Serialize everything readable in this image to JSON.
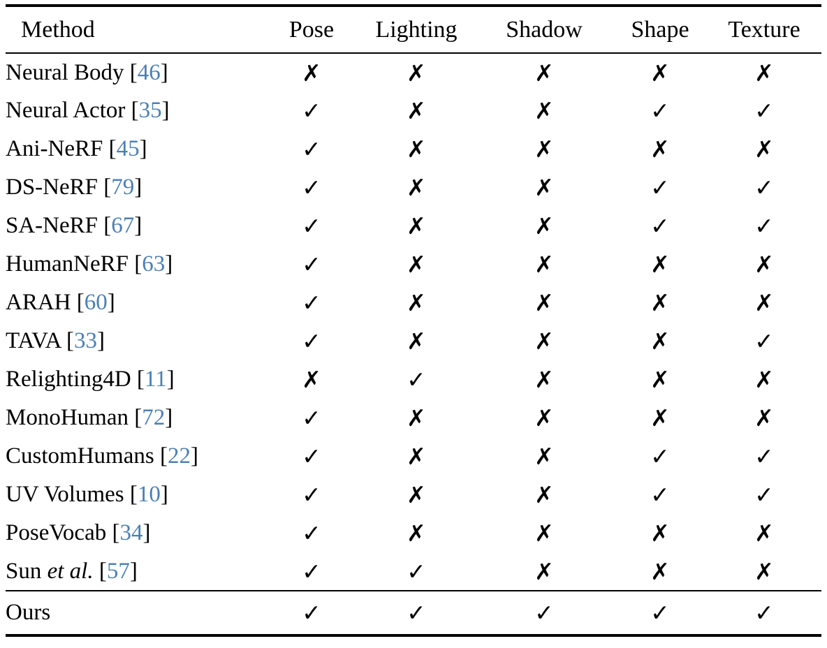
{
  "table": {
    "title": "Method capability comparison table",
    "columns": [
      "Method",
      "Pose",
      "Lighting",
      "Shadow",
      "Shape",
      "Texture"
    ],
    "glyphs": {
      "check": "✓",
      "cross": "✗"
    },
    "colors": {
      "citation": "#4b80b5",
      "ink": "#000000",
      "background": "#ffffff"
    },
    "rows": [
      {
        "method": "Neural Body",
        "cite": "46",
        "marks": [
          "cross",
          "cross",
          "cross",
          "cross",
          "cross"
        ]
      },
      {
        "method": "Neural Actor",
        "cite": "35",
        "marks": [
          "check",
          "cross",
          "cross",
          "check",
          "check"
        ]
      },
      {
        "method": "Ani-NeRF",
        "cite": "45",
        "marks": [
          "check",
          "cross",
          "cross",
          "cross",
          "cross"
        ]
      },
      {
        "method": "DS-NeRF",
        "cite": "79",
        "marks": [
          "check",
          "cross",
          "cross",
          "check",
          "check"
        ]
      },
      {
        "method": "SA-NeRF",
        "cite": "67",
        "marks": [
          "check",
          "cross",
          "cross",
          "check",
          "check"
        ]
      },
      {
        "method": "HumanNeRF",
        "cite": "63",
        "marks": [
          "check",
          "cross",
          "cross",
          "cross",
          "cross"
        ]
      },
      {
        "method": "ARAH",
        "cite": "60",
        "marks": [
          "check",
          "cross",
          "cross",
          "cross",
          "cross"
        ]
      },
      {
        "method": "TAVA",
        "cite": "33",
        "marks": [
          "check",
          "cross",
          "cross",
          "cross",
          "check"
        ]
      },
      {
        "method": "Relighting4D",
        "cite": "11",
        "marks": [
          "cross",
          "check",
          "cross",
          "cross",
          "cross"
        ]
      },
      {
        "method": "MonoHuman",
        "cite": "72",
        "marks": [
          "check",
          "cross",
          "cross",
          "cross",
          "cross"
        ]
      },
      {
        "method": "CustomHumans",
        "cite": "22",
        "marks": [
          "check",
          "cross",
          "cross",
          "check",
          "check"
        ]
      },
      {
        "method": "UV Volumes",
        "cite": "10",
        "marks": [
          "check",
          "cross",
          "cross",
          "check",
          "check"
        ]
      },
      {
        "method": "PoseVocab",
        "cite": "34",
        "marks": [
          "check",
          "cross",
          "cross",
          "cross",
          "cross"
        ]
      },
      {
        "method": "Sun",
        "method_italic": "et al.",
        "cite": "57",
        "marks": [
          "check",
          "check",
          "cross",
          "cross",
          "cross"
        ]
      }
    ],
    "ours": {
      "method": "Ours",
      "marks": [
        "check",
        "check",
        "check",
        "check",
        "check"
      ]
    }
  }
}
